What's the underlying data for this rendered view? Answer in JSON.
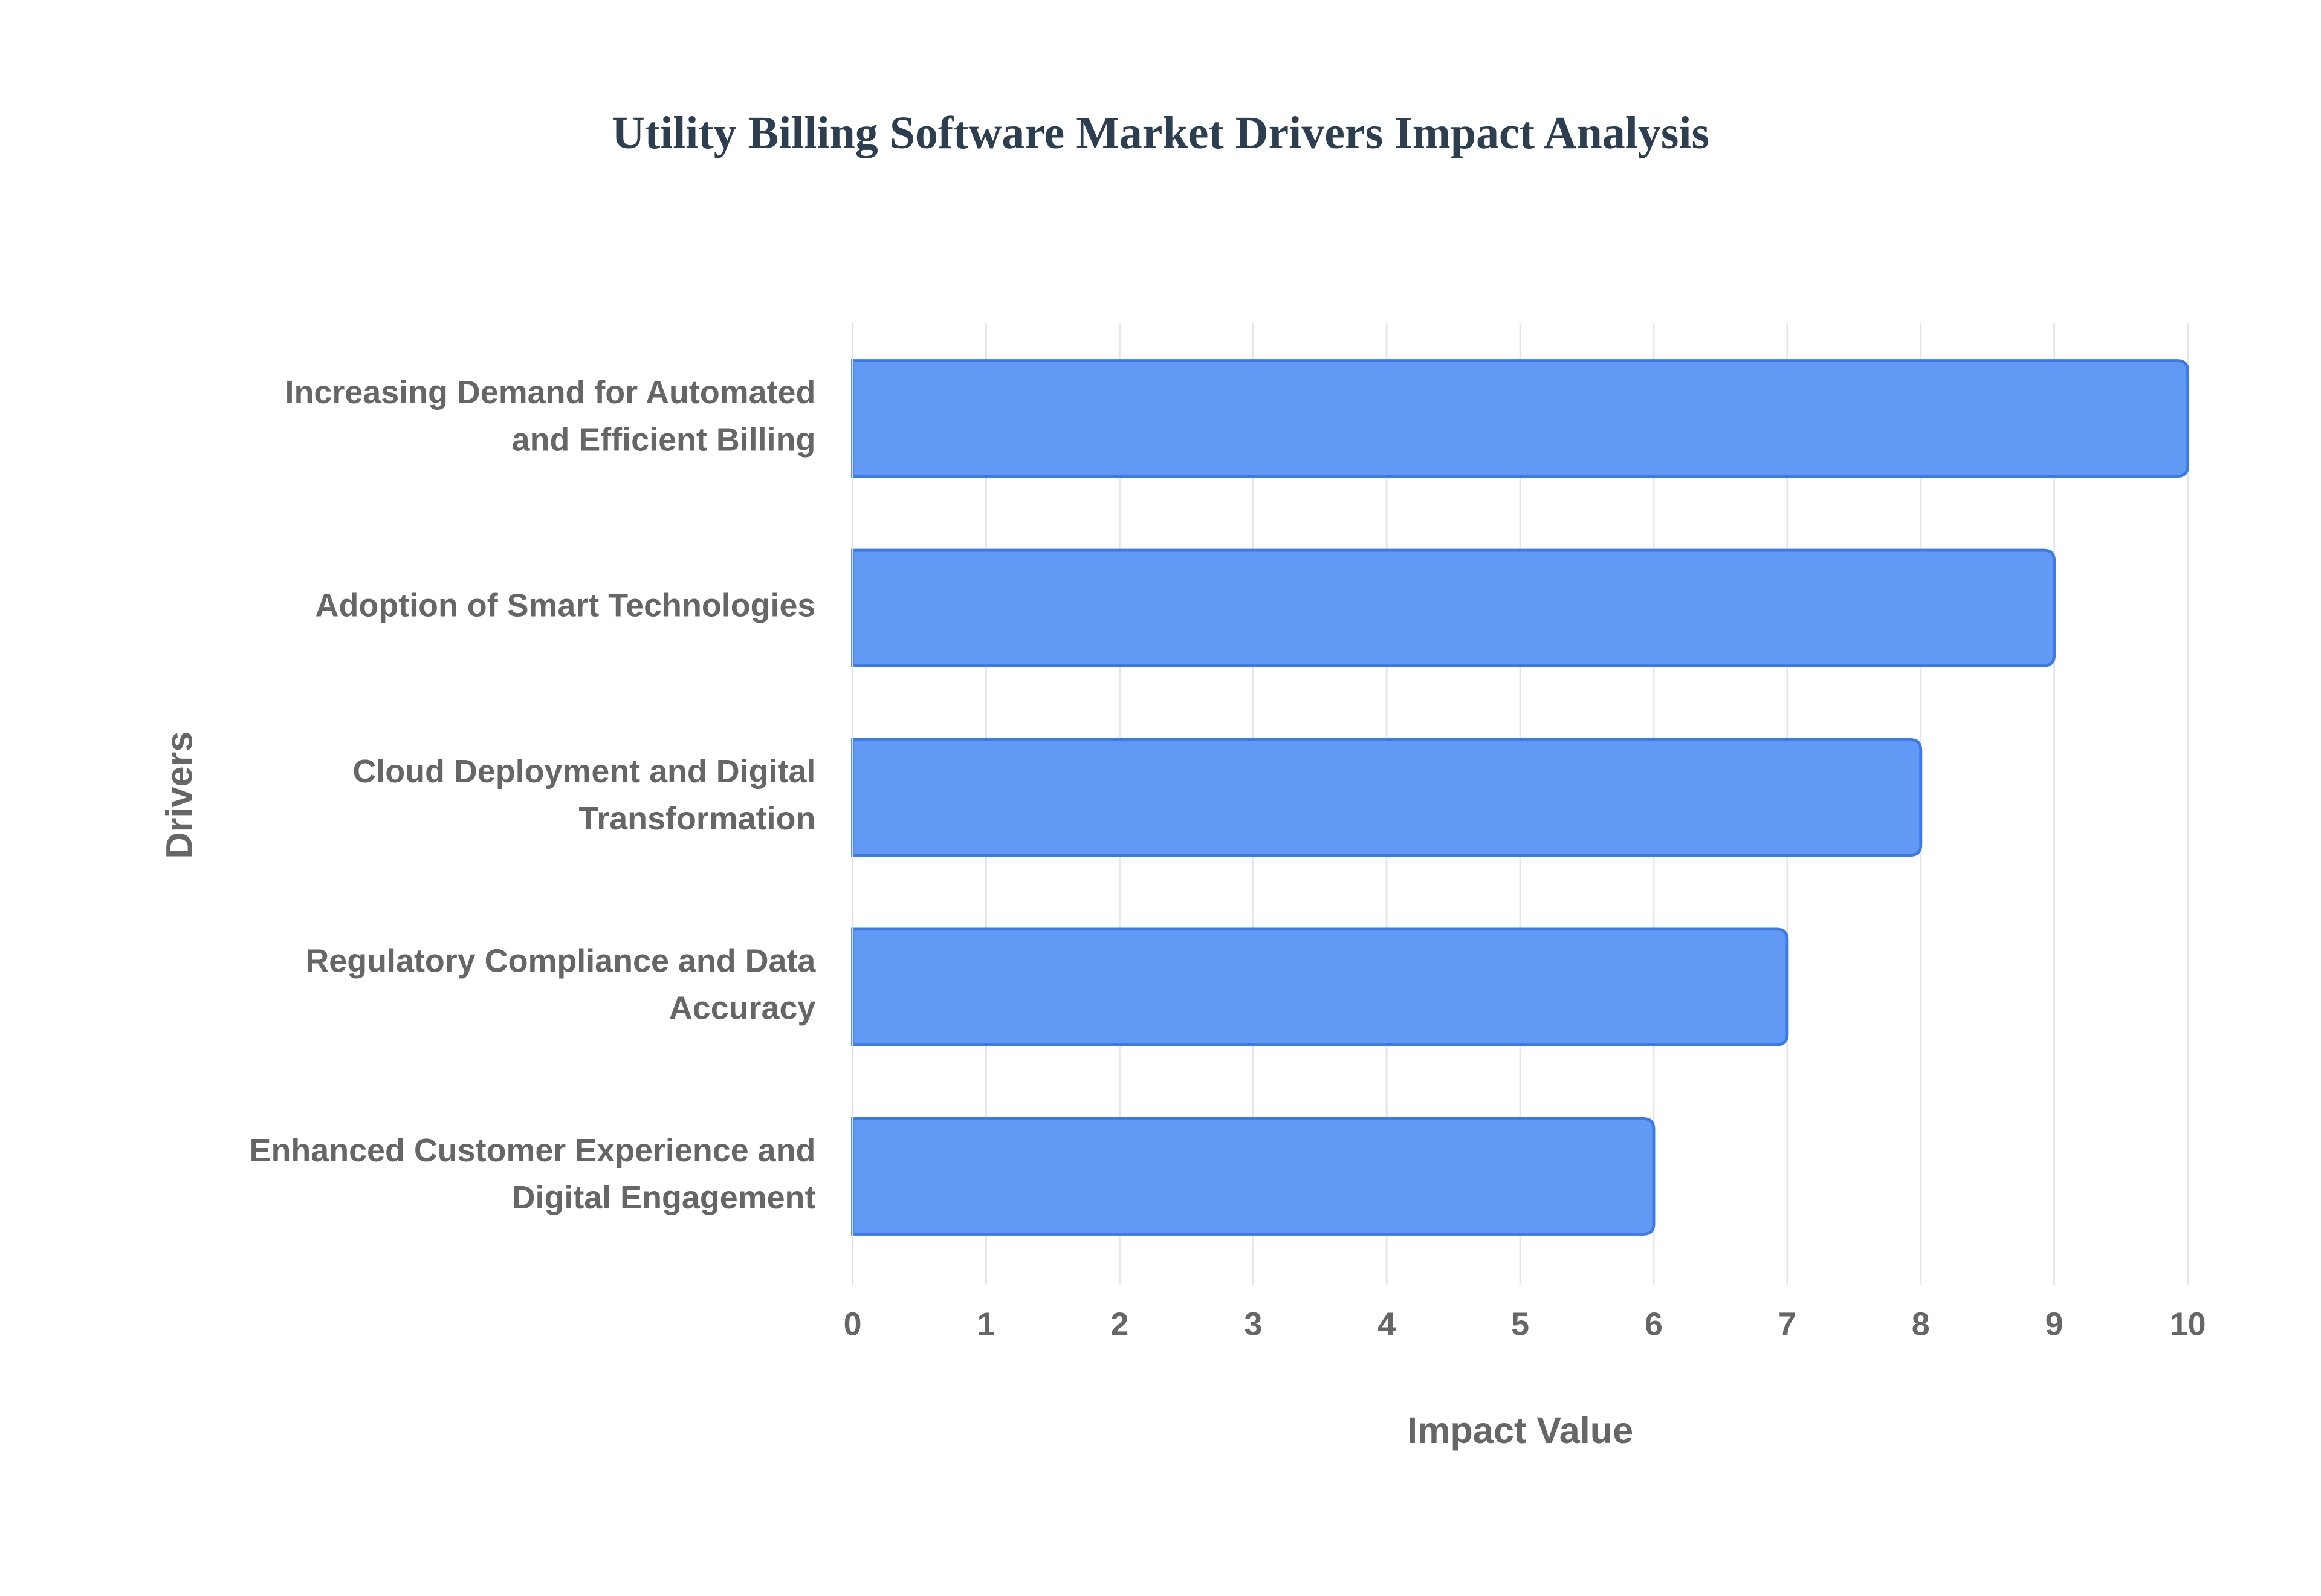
{
  "chart_data": {
    "type": "bar",
    "orientation": "horizontal",
    "title": "Utility Billing Software Market Drivers Impact Analysis",
    "x_label": "Impact Value",
    "y_label": "Drivers",
    "categories": [
      "Increasing Demand for Automated and Efficient Billing",
      "Adoption of Smart Technologies",
      "Cloud Deployment and Digital Transformation",
      "Regulatory Compliance and Data Accuracy",
      "Enhanced Customer Experience and Digital Engagement"
    ],
    "values": [
      10,
      9,
      8,
      7,
      6
    ],
    "color": "#6199f5",
    "edge_color": "#3b7be8",
    "xlim": [
      0,
      10
    ],
    "xticks": [
      0,
      1,
      2,
      3,
      4,
      5,
      6,
      7,
      8,
      9,
      10
    ],
    "grid": true
  }
}
